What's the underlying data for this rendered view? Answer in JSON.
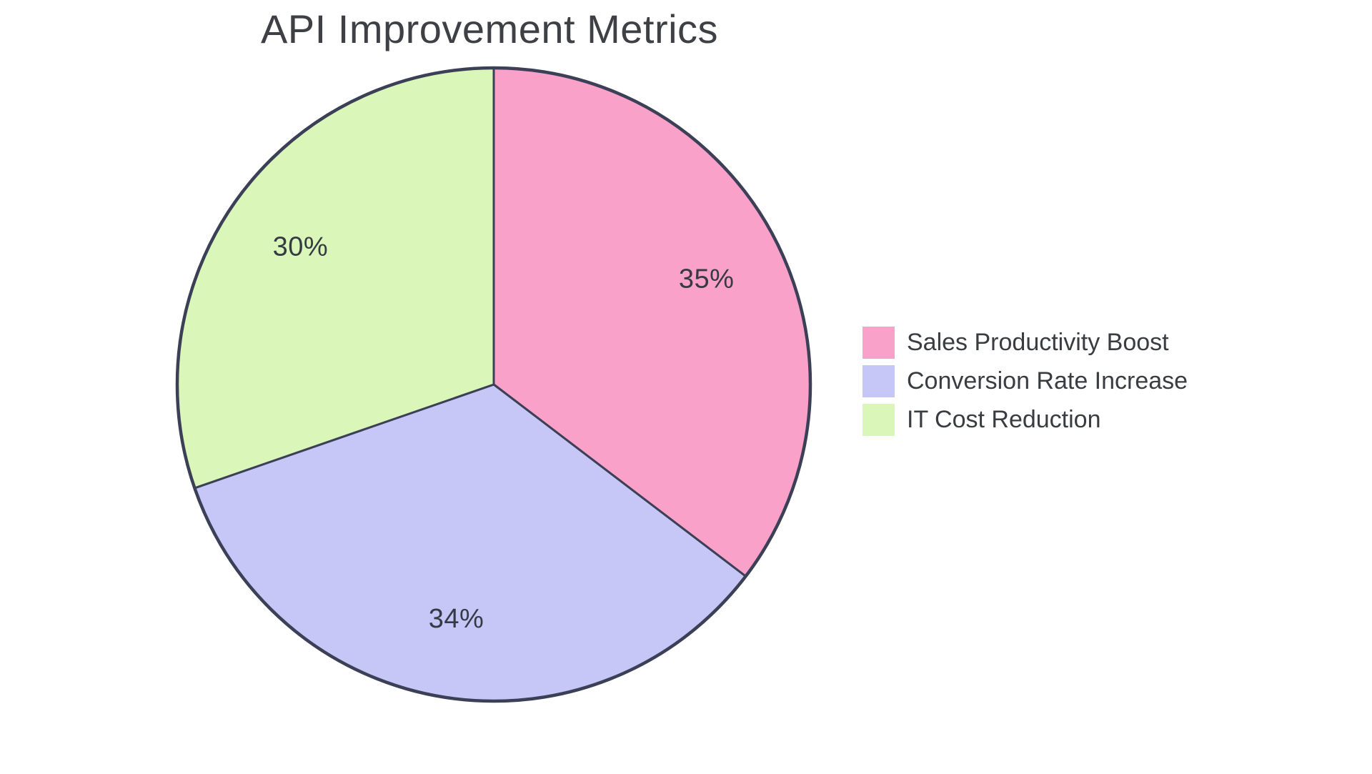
{
  "chart_data": {
    "type": "pie",
    "title": "API Improvement Metrics",
    "series": [
      {
        "label": "Sales Productivity Boost",
        "value": 35,
        "pct_label": "35%",
        "color": "#FAA1C9"
      },
      {
        "label": "Conversion Rate Increase",
        "value": 34,
        "pct_label": "34%",
        "color": "#C7C7F7"
      },
      {
        "label": "IT Cost Reduction",
        "value": 30,
        "pct_label": "30%",
        "color": "#DAF7B9"
      }
    ],
    "start_angle_deg": 0,
    "direction": "clockwise",
    "border_color": "#3C4057",
    "border_width": 3,
    "outer_rim_width": 4.5,
    "label_color": "#363A45",
    "label_radius_ratio": 0.75,
    "title_color": "#3F4045",
    "legend_position": "right",
    "background": "#FFFFFF",
    "grid": false
  }
}
